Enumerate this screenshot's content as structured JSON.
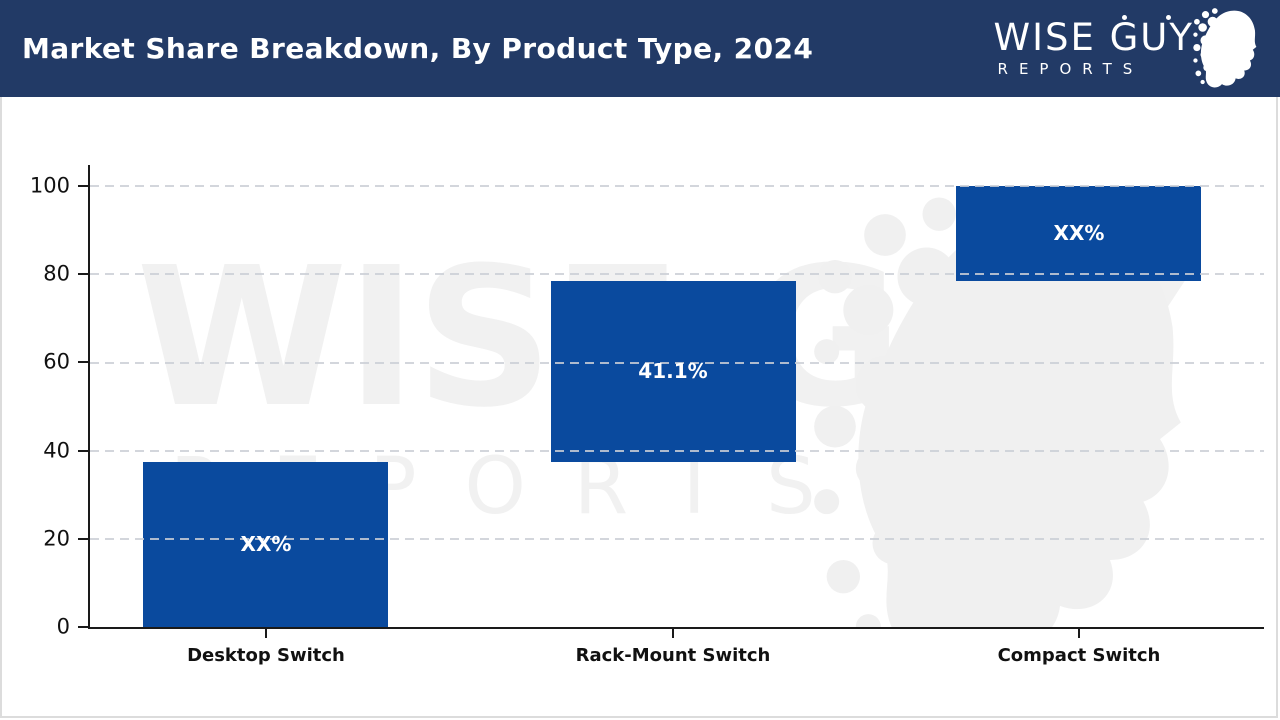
{
  "header": {
    "title": "Market Share Breakdown, By Product Type, 2024",
    "logo": {
      "wordmark": "WISE GUY",
      "subtext": "REPORTS"
    }
  },
  "watermark": {
    "wordmark": "WISE GUY",
    "subtext": "REPORTS"
  },
  "colors": {
    "header_bg": "#223A66",
    "bar": "#0a4a9e",
    "grid": "#d9d9d9",
    "axis": "#1a1a1a",
    "tick_text": "#111111",
    "bar_label_text": "#ffffff",
    "watermark": "#f1f1f1"
  },
  "chart_data": {
    "type": "bar",
    "subtype": "floating-waterfall",
    "title": "Market Share Breakdown, By Product Type, 2024",
    "categories": [
      "Desktop Switch",
      "Rack-Mount Switch",
      "Compact Switch"
    ],
    "bars": [
      {
        "category": "Desktop Switch",
        "start": 0,
        "end": 37.5,
        "label": "XX%"
      },
      {
        "category": "Rack-Mount Switch",
        "start": 37.5,
        "end": 78.6,
        "label": "41.1%"
      },
      {
        "category": "Compact Switch",
        "start": 78.6,
        "end": 100,
        "label": "XX%"
      }
    ],
    "xlabel": "",
    "ylabel": "",
    "yticks": [
      0,
      20,
      40,
      60,
      80,
      100
    ],
    "ylim": [
      0,
      104.8
    ],
    "grid": "horizontal-dashed",
    "legend": "none"
  }
}
